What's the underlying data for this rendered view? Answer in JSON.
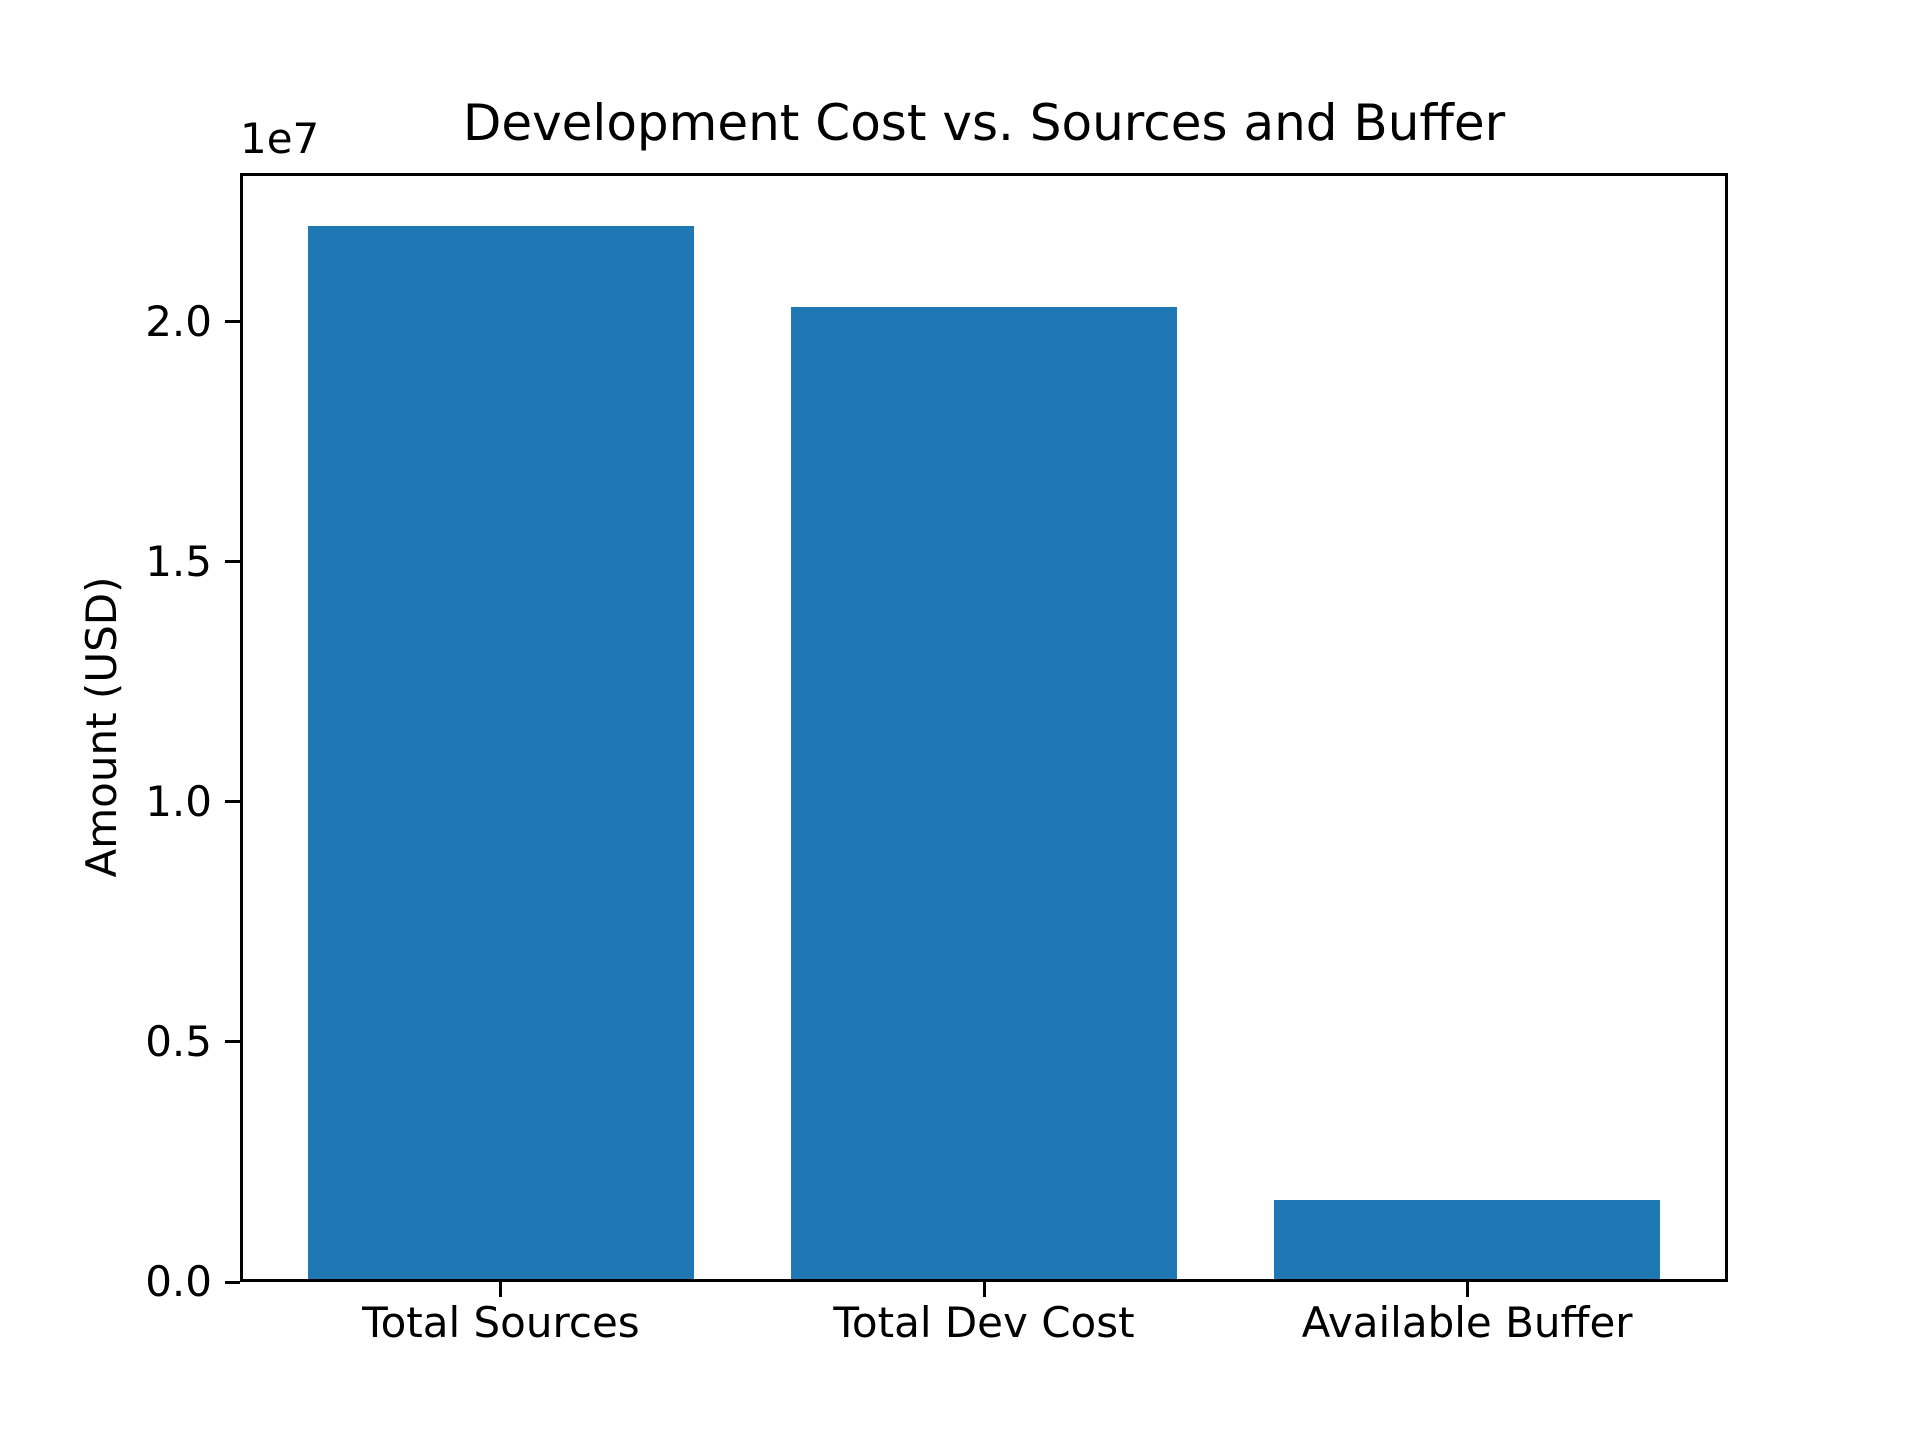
{
  "chart_data": {
    "type": "bar",
    "title": "Development Cost vs. Sources and Buffer",
    "categories": [
      "Total Sources",
      "Total Dev Cost",
      "Available Buffer"
    ],
    "values": [
      22000000,
      20300000,
      1700000
    ],
    "xlabel": "",
    "ylabel": "Amount (USD)",
    "y_offset_label": "1e7",
    "ylim": [
      0,
      23100000
    ],
    "yticks": [
      {
        "value": 0,
        "label": "0.0"
      },
      {
        "value": 5000000,
        "label": "0.5"
      },
      {
        "value": 10000000,
        "label": "1.0"
      },
      {
        "value": 15000000,
        "label": "1.5"
      },
      {
        "value": 20000000,
        "label": "2.0"
      }
    ],
    "bar_color": "#1f77b4",
    "text_color": "#000000",
    "grid": false,
    "legend_position": "none"
  }
}
